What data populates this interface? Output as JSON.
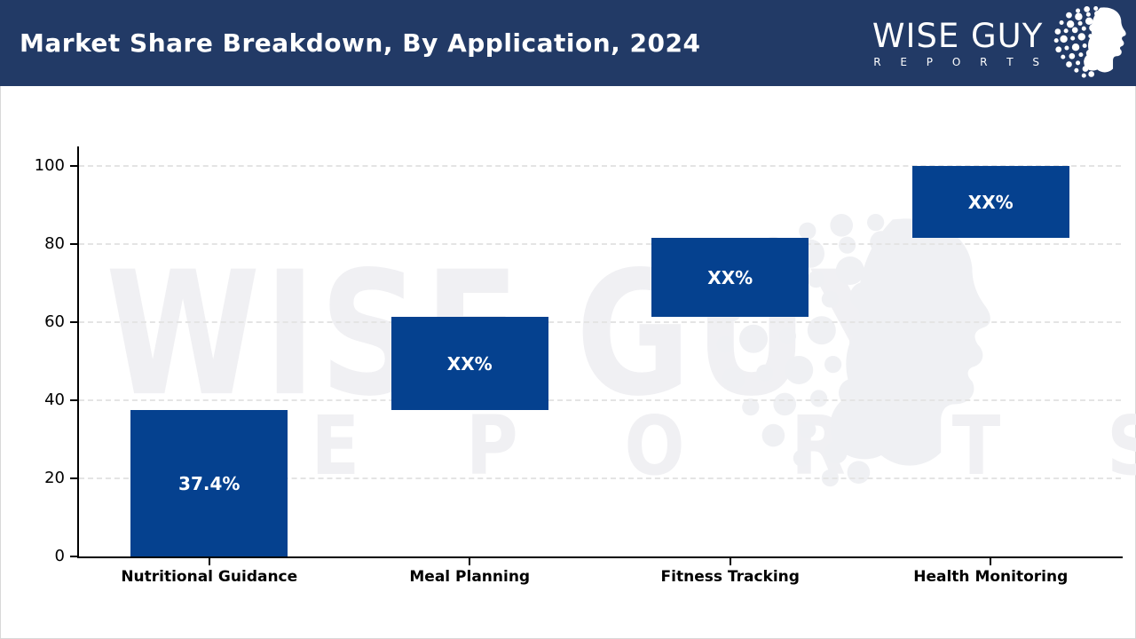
{
  "header": {
    "title": "Market Share Breakdown, By Application, 2024",
    "background": "#223A66",
    "logo": {
      "line1": "WISE GUY",
      "line2": "R E P O R T S"
    }
  },
  "watermark": {
    "line1": "WISE GUY",
    "line2": "R E P O R T S"
  },
  "chart_data": {
    "type": "bar",
    "subtype": "waterfall",
    "title": "Market Share Breakdown, By Application, 2024",
    "categories": [
      "Nutritional Guidance",
      "Meal Planning",
      "Fitness Tracking",
      "Health Monitoring"
    ],
    "segments": [
      {
        "category": "Nutritional Guidance",
        "start": 0,
        "end": 37.4,
        "label": "37.4%"
      },
      {
        "category": "Meal Planning",
        "start": 37.4,
        "end": 61.4,
        "label": "XX%"
      },
      {
        "category": "Fitness Tracking",
        "start": 61.4,
        "end": 81.5,
        "label": "XX%"
      },
      {
        "category": "Health Monitoring",
        "start": 81.5,
        "end": 100,
        "label": "XX%"
      }
    ],
    "y_ticks": [
      0,
      20,
      40,
      60,
      80,
      100
    ],
    "ylim": [
      0,
      105
    ],
    "xlabel": "",
    "ylabel": "",
    "grid": "horizontal-dashed",
    "legend": "none",
    "bar_color": "#05418F",
    "label_color": "#FFFFFF",
    "axis_color": "#000000"
  }
}
